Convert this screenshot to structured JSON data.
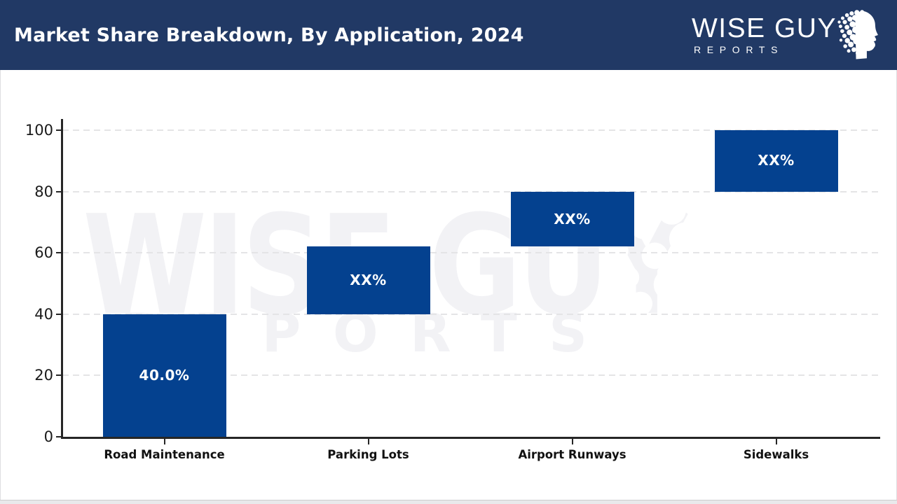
{
  "header": {
    "title": "Market Share Breakdown, By Application, 2024",
    "bg_color": "#213965",
    "logo": {
      "line1": "WISE GUY",
      "line2": "REPORTS"
    }
  },
  "watermark": {
    "line1": "WISE GUY",
    "line2": "REPORTS"
  },
  "chart_data": {
    "type": "bar",
    "subtype": "waterfall",
    "title": "Market Share Breakdown, By Application, 2024",
    "categories": [
      "Road Maintenance",
      "Parking Lots",
      "Airport Runways",
      "Sidewalks"
    ],
    "segments": [
      {
        "category": "Road Maintenance",
        "start": 0,
        "end": 40,
        "value": 40,
        "label": "40.0%"
      },
      {
        "category": "Parking Lots",
        "start": 40,
        "end": 62,
        "value": 22,
        "label": "XX%"
      },
      {
        "category": "Airport Runways",
        "start": 62,
        "end": 80,
        "value": 18,
        "label": "XX%"
      },
      {
        "category": "Sidewalks",
        "start": 80,
        "end": 100,
        "value": 20,
        "label": "XX%"
      }
    ],
    "y_ticks": [
      "0",
      "20",
      "40",
      "60",
      "80",
      "100"
    ],
    "ylim": [
      0,
      100
    ],
    "xlabel": "",
    "ylabel": "",
    "grid": "horizontal-dashed",
    "legend": "none",
    "bar_color": "#04418f",
    "bar_label_color": "#ffffff",
    "axis_color": "#262626"
  }
}
